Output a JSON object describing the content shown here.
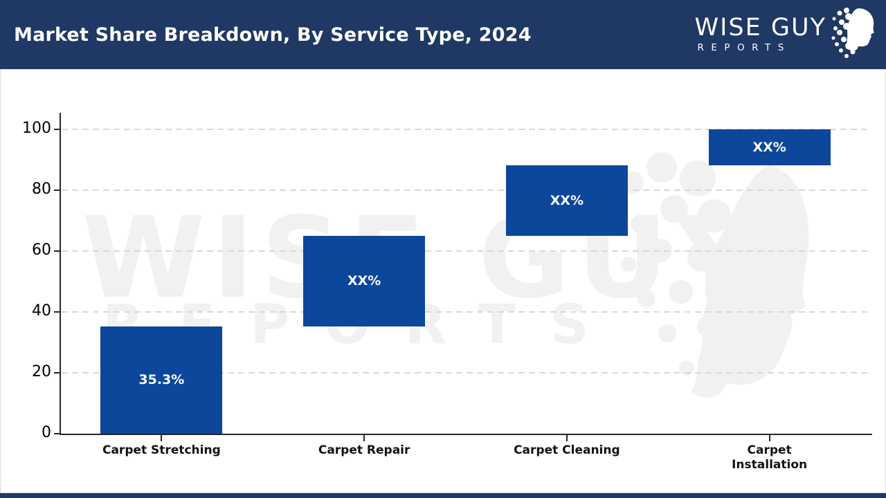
{
  "header": {
    "title": "Market Share Breakdown, By Service Type, 2024",
    "logo": {
      "line1": "WISE GUY",
      "line2": "REPORTS"
    }
  },
  "watermark": {
    "line1": "WISE GUY",
    "line2": "REPORTS"
  },
  "chart_data": {
    "type": "bar",
    "subtype": "waterfall",
    "title": "Market Share Breakdown, By Service Type, 2024",
    "categories": [
      "Carpet Stretching",
      "Carpet Repair",
      "Carpet Cleaning",
      "Carpet\nInstallation"
    ],
    "segments": [
      {
        "category": "Carpet Stretching",
        "label": "35.3%",
        "start": 0,
        "end": 35.3
      },
      {
        "category": "Carpet Repair",
        "label": "XX%",
        "start": 35.3,
        "end": 65
      },
      {
        "category": "Carpet Cleaning",
        "label": "XX%",
        "start": 65,
        "end": 88.2
      },
      {
        "category": "Carpet Installation",
        "label": "XX%",
        "start": 88.2,
        "end": 100
      }
    ],
    "yticks": [
      0,
      20,
      40,
      60,
      80,
      100
    ],
    "ylim": [
      0,
      100
    ],
    "xlabel": "",
    "ylabel": "",
    "grid": "horizontal-dashed",
    "legend": "none",
    "bar_color": "#0d479c",
    "bar_label_color": "#ffffff"
  },
  "colors": {
    "header_bg": "#1f3864",
    "footer_bg": "#1f3864",
    "watermark": "#f1f1f1",
    "axis": "#262626",
    "gridline": "#d8d8d8"
  }
}
